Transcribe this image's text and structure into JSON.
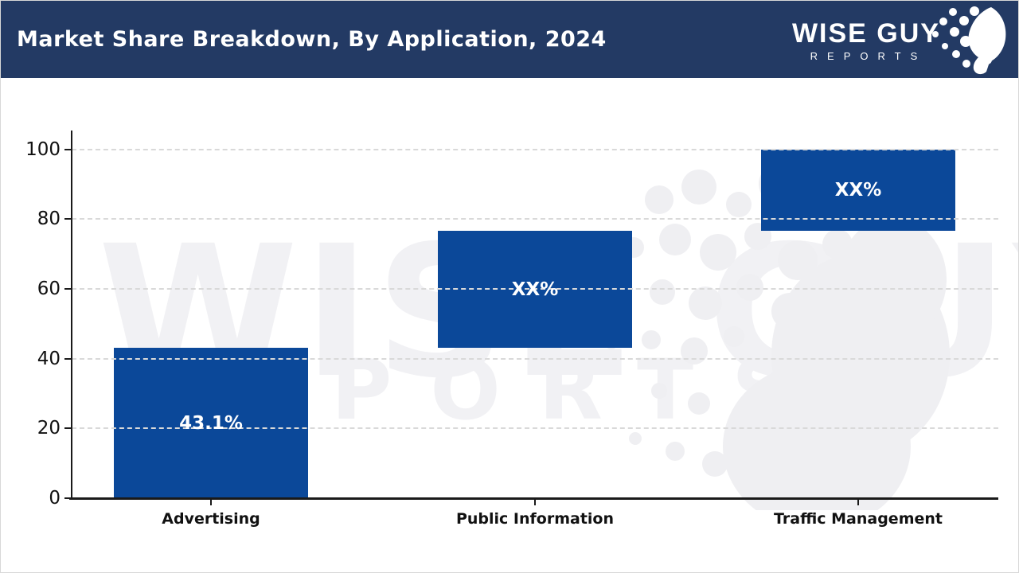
{
  "header": {
    "title": "Market Share Breakdown, By Application, 2024",
    "bg_color": "#233A64",
    "logo": {
      "line1": "WISE GUY",
      "line2": "REPORTS"
    }
  },
  "watermark": {
    "line1": "WISE GUY",
    "line2": "REPORTS"
  },
  "chart_data": {
    "type": "bar",
    "subtype": "floating-stacked-percentage",
    "title": "Market Share Breakdown, By Application, 2024",
    "categories": [
      "Advertising",
      "Public Information",
      "Traffic Management"
    ],
    "segments": [
      {
        "category": "Advertising",
        "start": 0,
        "end": 43.1,
        "label": "43.1%"
      },
      {
        "category": "Public Information",
        "start": 43.1,
        "end": 76.6,
        "label": "XX%"
      },
      {
        "category": "Traffic Management",
        "start": 76.6,
        "end": 100,
        "label": "XX%"
      }
    ],
    "ylim": [
      0,
      100
    ],
    "yticks": [
      0,
      20,
      40,
      60,
      80,
      100
    ],
    "xlabel": "",
    "ylabel": "",
    "grid": "horizontal-dashed",
    "legend": "none",
    "bar_color": "#0B4899",
    "bar_label_color": "#ffffff",
    "grid_color": "#d9d9d9",
    "axis_color": "#1a1a1a"
  }
}
